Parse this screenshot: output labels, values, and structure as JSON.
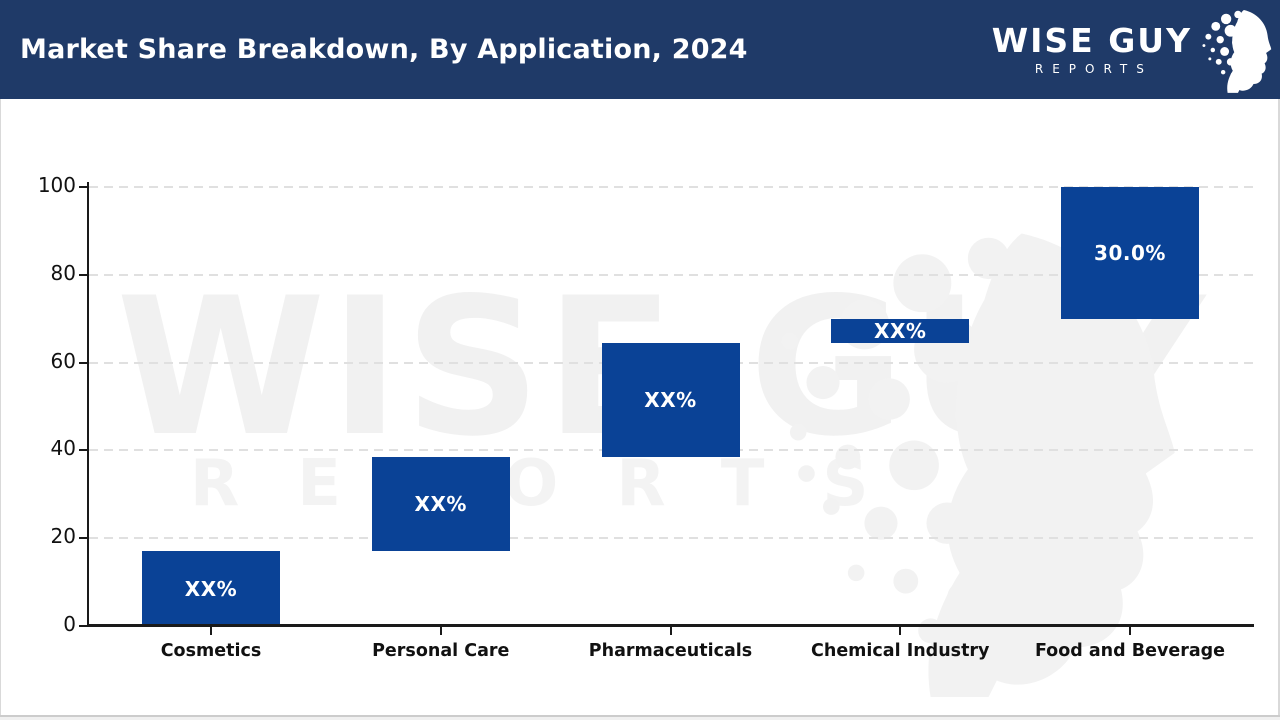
{
  "header": {
    "title": "Market Share Breakdown, By Application, 2024",
    "logo": {
      "line1": "WISE GUY",
      "line2": "REPORTS"
    }
  },
  "watermark": {
    "line1": "WISE GUY",
    "line2": "REPORTS"
  },
  "colors": {
    "header_bg": "#1f3a68",
    "bar_blue": "#0a4296",
    "bar_label": "#ffffff",
    "gridline": "#e0e0e0",
    "axis": "#1a1a1a",
    "watermark_gray": "#f1f1f1"
  },
  "chart_data": {
    "type": "bar",
    "subtype": "waterfall-floating-bars",
    "title": "Market Share Breakdown, By Application, 2024",
    "xlabel": "",
    "ylabel": "",
    "categories": [
      "Cosmetics",
      "Personal Care",
      "Pharmaceuticals",
      "Chemical Industry",
      "Food and Beverage"
    ],
    "segments": [
      {
        "category": "Cosmetics",
        "start": 0,
        "end": 17,
        "value": 17,
        "label": "XX%"
      },
      {
        "category": "Personal Care",
        "start": 17,
        "end": 38.5,
        "value": 21.5,
        "label": "XX%"
      },
      {
        "category": "Pharmaceuticals",
        "start": 38.5,
        "end": 64.5,
        "value": 26,
        "label": "XX%"
      },
      {
        "category": "Chemical Industry",
        "start": 64.5,
        "end": 70,
        "value": 5.5,
        "label": "XX%"
      },
      {
        "category": "Food and Beverage",
        "start": 70,
        "end": 100,
        "value": 30,
        "label": "30.0%"
      }
    ],
    "yticks": [
      0,
      20,
      40,
      60,
      80,
      100
    ],
    "ylim": [
      0,
      101
    ],
    "grid": "horizontal-dashed",
    "legend": "none",
    "bar_color": "#0a4296",
    "label_color": "#ffffff"
  }
}
